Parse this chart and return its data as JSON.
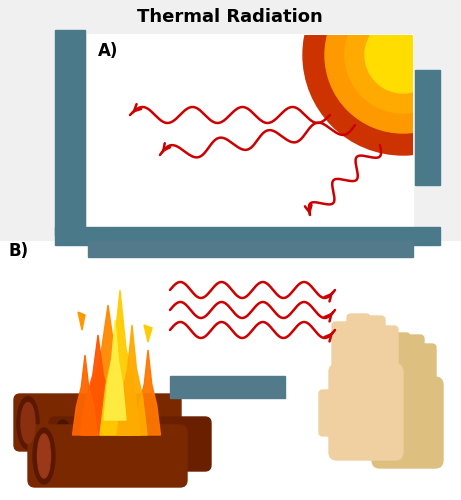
{
  "title": "Thermal Radiation",
  "title_fontsize": 13,
  "title_fontweight": "bold",
  "label_A": "A)",
  "label_B": "B)",
  "label_fontsize": 12,
  "bg_color": "#f0f0f0",
  "panel_bg": "#ffffff",
  "border_color": "#4a7a8a",
  "wave_color": "#cc0000",
  "sun_yellow": "#ffdd00",
  "sun_orange": "#ff9900",
  "sun_red": "#cc3300",
  "fire_yellow": "#ffcc00",
  "fire_orange": "#ff8800",
  "fire_red": "#cc3300",
  "log_color": "#7a2800",
  "log_dark": "#5a1800",
  "skin_color": "#f0d0a0",
  "skin_dark": "#ddc080",
  "divider_color": "#527a8a",
  "outline_color": "#222222"
}
